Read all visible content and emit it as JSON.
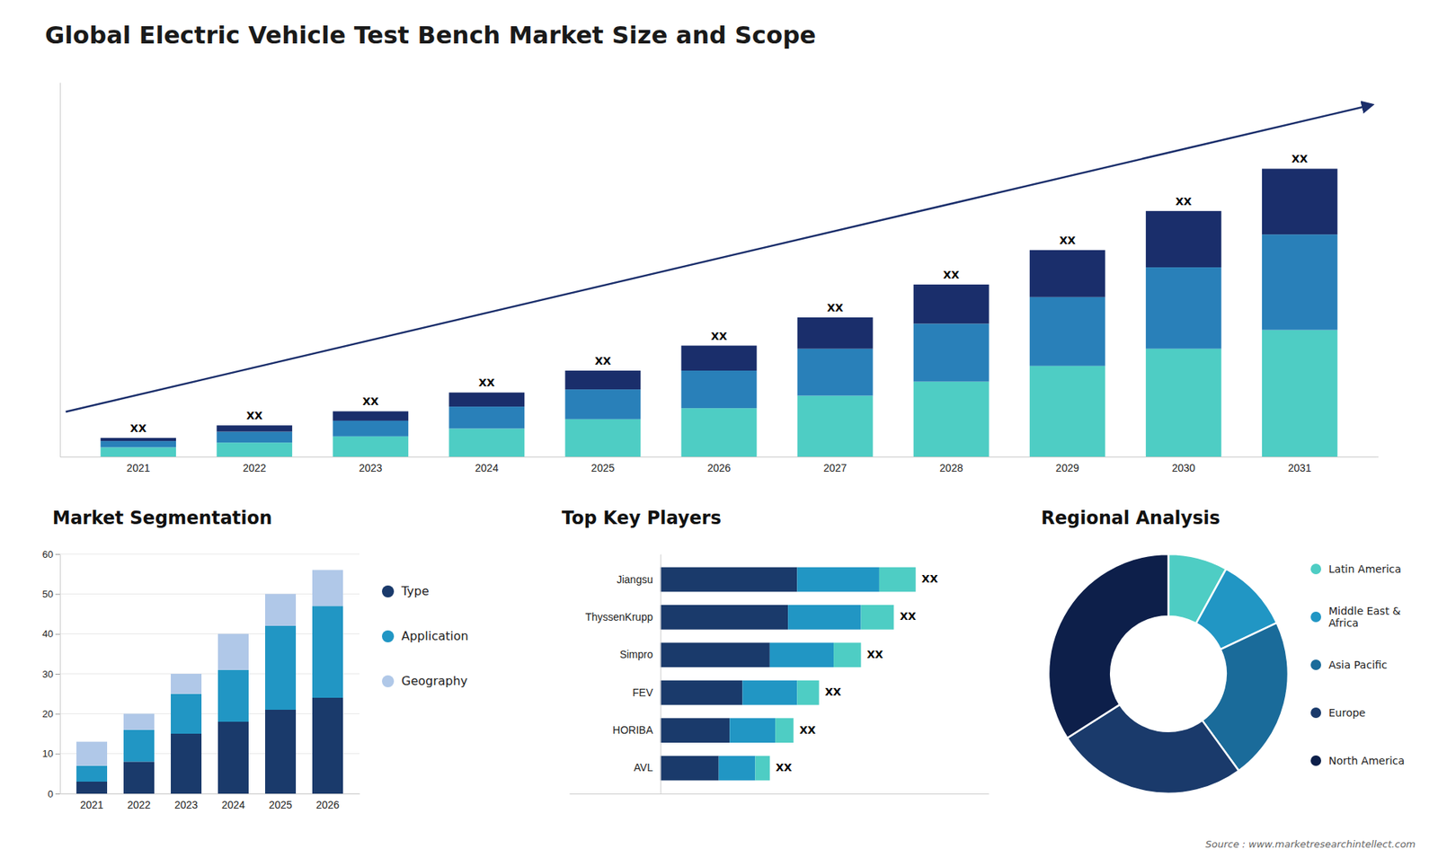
{
  "title": "Global Electric Vehicle Test Bench Market Size and Scope",
  "source": "Source : www.marketresearchintellect.com",
  "chart_data": [
    {
      "type": "bar",
      "stacked": true,
      "categories": [
        "2021",
        "2022",
        "2023",
        "2024",
        "2025",
        "2026",
        "2027",
        "2028",
        "2029",
        "2030",
        "2031"
      ],
      "series": [
        {
          "color": "#4ecdc4",
          "values": [
            0.6,
            0.9,
            1.3,
            1.8,
            2.4,
            3.1,
            3.9,
            4.8,
            5.8,
            6.9,
            8.1
          ]
        },
        {
          "color": "#2980b9",
          "values": [
            0.4,
            0.7,
            1.0,
            1.4,
            1.9,
            2.4,
            3.0,
            3.7,
            4.4,
            5.2,
            6.1
          ]
        },
        {
          "color": "#1a2e6b",
          "values": [
            0.2,
            0.4,
            0.6,
            0.9,
            1.2,
            1.6,
            2.0,
            2.5,
            3.0,
            3.6,
            4.2
          ]
        }
      ],
      "ylim": [
        0,
        23.92
      ],
      "grid": false,
      "tick_labels": "x",
      "annotations": [
        "XX",
        "XX",
        "XX",
        "XX",
        "XX",
        "XX",
        "XX",
        "XX",
        "XX",
        "XX",
        "XX"
      ]
    },
    {
      "type": "bar",
      "stacked": true,
      "title": "Market Segmentation",
      "categories": [
        "2021",
        "2022",
        "2023",
        "2024",
        "2025",
        "2026"
      ],
      "series": [
        {
          "name": "Type",
          "color": "#1a3a6b",
          "values": [
            3,
            8,
            15,
            18,
            21,
            24
          ]
        },
        {
          "name": "Application",
          "color": "#2196C4",
          "values": [
            4,
            8,
            10,
            13,
            21,
            23
          ]
        },
        {
          "name": "Geography",
          "color": "#b0c8e8",
          "values": [
            6,
            4,
            5,
            9,
            8,
            9
          ]
        }
      ],
      "ylim": [
        0,
        60
      ],
      "yticks": [
        0,
        10,
        20,
        30,
        40,
        50,
        60
      ],
      "grid": true,
      "legend": "right"
    },
    {
      "type": "bar",
      "stacked": true,
      "orientation": "horizontal",
      "title": "Top Key Players",
      "categories": [
        "Jiangsu",
        "ThyssenKrupp",
        "Simpro",
        "FEV",
        "HORIBA",
        "AVL"
      ],
      "series": [
        {
          "color": "#1a3a6b",
          "values": [
            7.5,
            7.0,
            6.0,
            4.5,
            3.8,
            3.2
          ]
        },
        {
          "color": "#2196C4",
          "values": [
            4.5,
            4.0,
            3.5,
            3.0,
            2.5,
            2.0
          ]
        },
        {
          "color": "#4ecdc4",
          "values": [
            2.0,
            1.8,
            1.5,
            1.2,
            1.0,
            0.8
          ]
        }
      ],
      "xlim": [
        -5,
        18
      ],
      "grid": false,
      "tick_labels": "y",
      "annotations": [
        "XX",
        "XX",
        "XX",
        "XX",
        "XX",
        "XX"
      ]
    },
    {
      "type": "pie",
      "title": "Regional Analysis",
      "categories": [
        "Latin America",
        "Middle East &\nAfrica",
        "Asia Pacific",
        "Europe",
        "North America"
      ],
      "values": [
        8,
        10,
        22,
        26,
        34
      ],
      "colors": [
        "#4ecdc4",
        "#2196C4",
        "#1a6b9a",
        "#1a3a6b",
        "#0d1f4a"
      ],
      "legend": "right"
    }
  ]
}
